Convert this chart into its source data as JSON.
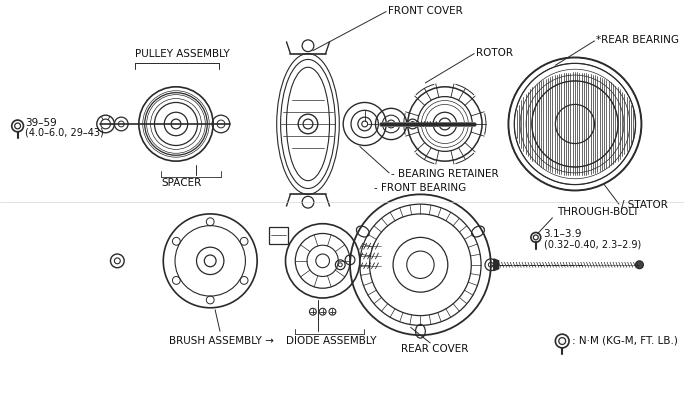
{
  "bg_color": "#f5f5f0",
  "line_color": "#2a2a2a",
  "text_color": "#111111",
  "labels": {
    "pulley_assembly": "PULLEY ASSEMBLY",
    "front_cover": "FRONT COVER",
    "rotor": "ROTOR",
    "rear_bearing": "*REAR BEARING",
    "spacer": "SPACER",
    "bearing_retainer": "- BEARING RETAINER",
    "front_bearing": "- FRONT BEARING",
    "stator": "/ STATOR",
    "brush_assembly": "BRUSH ASSEMBLY →",
    "diode_assembly": "DIODE ASSEMBLY",
    "rear_cover": "REAR COVER",
    "through_bolt": "THROUGH-BOLT",
    "nm_label": ": N·M (KG-M, FT. LB.)",
    "torque1": "39–59",
    "torque1b": "(4.0–6.0, 29–43)",
    "torque2": "3.1–3.9",
    "torque2b": "(0.32–0.40, 2.3–2.9)"
  },
  "fig_width": 7.0,
  "fig_height": 4.04,
  "dpi": 100
}
